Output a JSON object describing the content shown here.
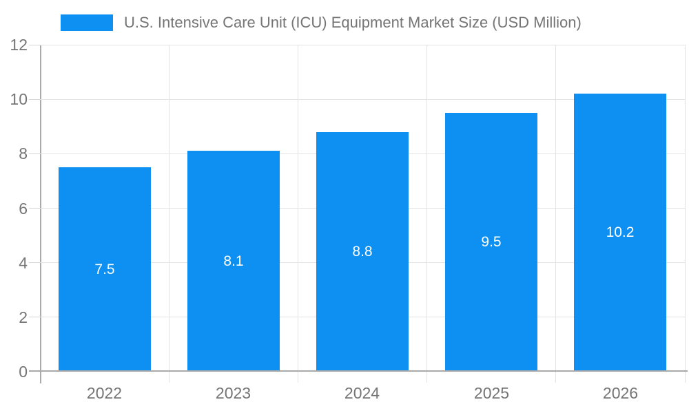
{
  "chart_data": {
    "type": "bar",
    "title": "U.S. Intensive Care Unit (ICU) Equipment Market Size (USD Million)",
    "categories": [
      "2022",
      "2023",
      "2024",
      "2025",
      "2026"
    ],
    "values": [
      7.5,
      8.1,
      8.8,
      9.5,
      10.2
    ],
    "value_labels": [
      "7.5",
      "8.1",
      "8.8",
      "9.5",
      "10.2"
    ],
    "xlabel": "",
    "ylabel": "",
    "ylim": [
      0,
      12
    ],
    "yticks": [
      0,
      2,
      4,
      6,
      8,
      10,
      12
    ],
    "grid": true,
    "legend_position": "top-left",
    "colors": {
      "bar": "#0d90f2",
      "bar_value_text": "#ffffff",
      "axis_text": "#757575",
      "legend_text": "#757575",
      "axis_line": "#aaaaaa",
      "gridline": "#e3e3e3",
      "tick": "#d6d6d6"
    }
  }
}
